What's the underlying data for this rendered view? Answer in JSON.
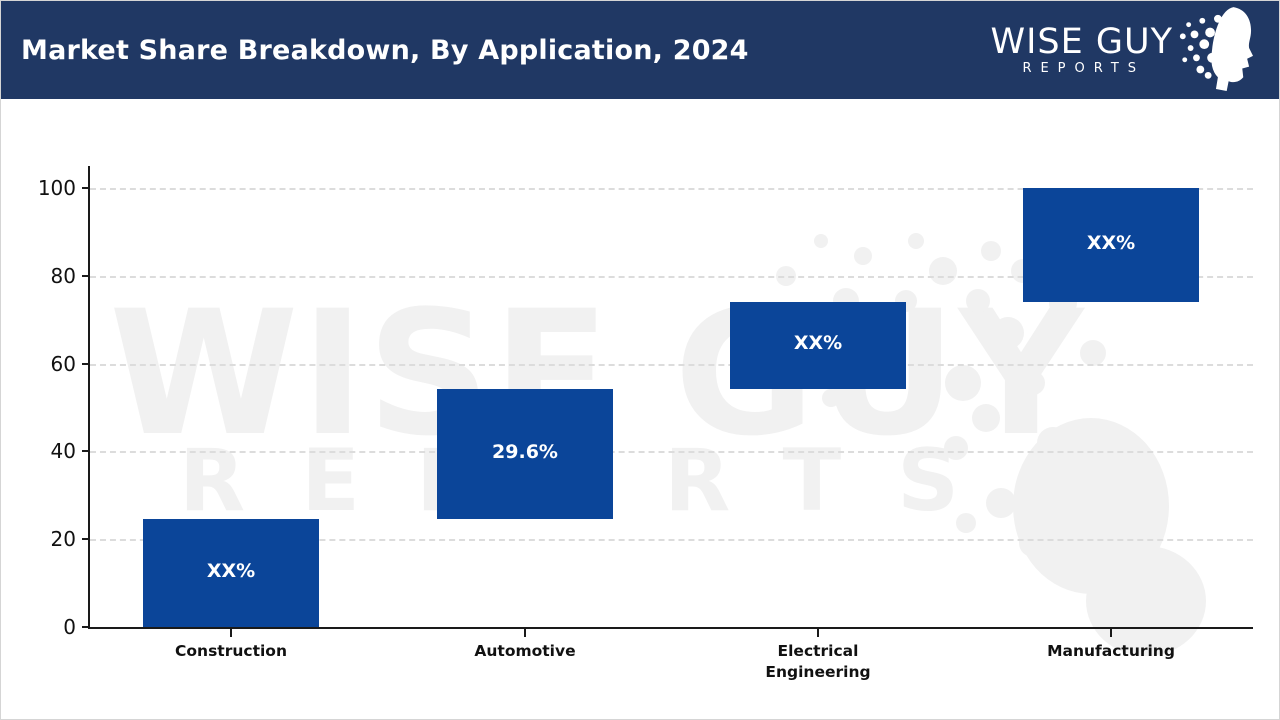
{
  "header": {
    "title": "Market Share Breakdown, By Application, 2024",
    "logo": {
      "line1": "WISE GUY",
      "line2": "REPORTS"
    }
  },
  "watermark": {
    "line1": "WISE GUY",
    "line2": "REPORTS"
  },
  "chart_data": {
    "type": "bar",
    "subtype": "waterfall-floating-bars",
    "title": "Market Share Breakdown, By Application, 2024",
    "categories": [
      "Construction",
      "Automotive",
      "Electrical Engineering",
      "Manufacturing"
    ],
    "segments": [
      {
        "category": "Construction",
        "start": 0,
        "end": 24.7,
        "label": "XX%"
      },
      {
        "category": "Automotive",
        "start": 24.7,
        "end": 54.3,
        "label": "29.6%"
      },
      {
        "category": "Electrical Engineering",
        "start": 54.3,
        "end": 74.1,
        "label": "XX%"
      },
      {
        "category": "Manufacturing",
        "start": 74.1,
        "end": 100,
        "label": "XX%"
      }
    ],
    "xlabel": "",
    "ylabel": "",
    "ylim": [
      0,
      100
    ],
    "yticks": [
      0,
      20,
      40,
      60,
      80,
      100
    ],
    "grid": "horizontal-dashed",
    "legend": "none",
    "bar_color": "#0b4599",
    "bar_label_color": "#ffffff"
  },
  "colors": {
    "header_bg": "#203864",
    "bar": "#0b4599",
    "grid": "#dcdcdc",
    "axis": "#1a1a1a",
    "watermark": "#f1f1f1"
  }
}
